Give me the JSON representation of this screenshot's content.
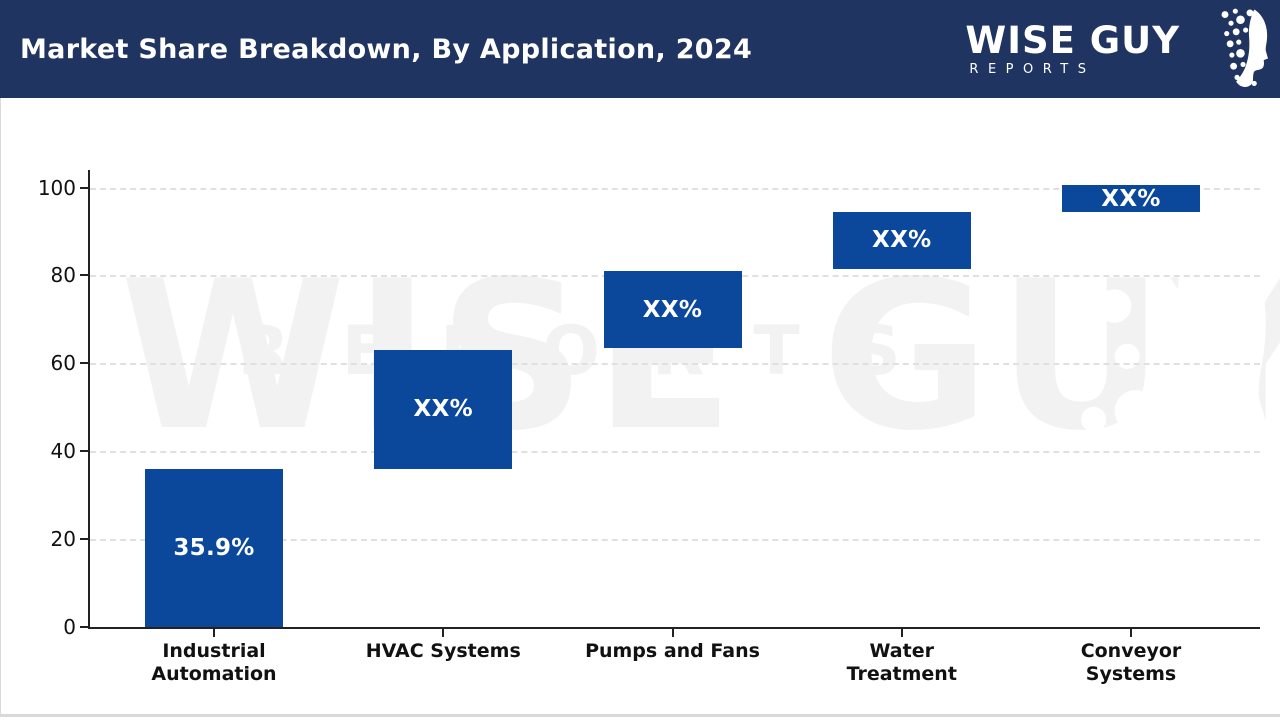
{
  "header": {
    "title": "Market Share Breakdown, By Application, 2024",
    "logo": {
      "line1": "WISE GUY",
      "line2": "REPORTS"
    }
  },
  "watermark": {
    "line1": "WISE GUY",
    "line2": "REPORTS"
  },
  "colors": {
    "header_bg": "#1f3460",
    "bar": "#0b479b",
    "bar_label_text": "#ffffff",
    "gridline": "#e0e0e0",
    "axis": "#222222",
    "watermark": "#f2f2f2",
    "page_bg": "#ffffff",
    "bottom_rule": "#d9d9d9"
  },
  "chart_data": {
    "type": "bar",
    "variant": "waterfall",
    "title": "Market Share Breakdown, By Application, 2024",
    "unit": "%",
    "categories": [
      "Industrial Automation",
      "HVAC Systems",
      "Pumps and Fans",
      "Water Treatment",
      "Conveyor Systems"
    ],
    "segments": [
      {
        "category": "Industrial Automation",
        "start": 0,
        "end": 35.9,
        "label": "35.9%"
      },
      {
        "category": "HVAC Systems",
        "start": 36.0,
        "end": 63.0,
        "label": "XX%"
      },
      {
        "category": "Pumps and Fans",
        "start": 63.5,
        "end": 81.0,
        "label": "XX%"
      },
      {
        "category": "Water Treatment",
        "start": 81.5,
        "end": 94.5,
        "label": "XX%"
      },
      {
        "category": "Conveyor Systems",
        "start": 94.5,
        "end": 100.5,
        "label": "XX%"
      }
    ],
    "yticks": [
      0,
      20,
      40,
      60,
      80,
      100
    ],
    "ylim": [
      0,
      104
    ],
    "xlabel": "",
    "ylabel": "",
    "grid": true,
    "grid_style": "dashed",
    "legend": false
  }
}
